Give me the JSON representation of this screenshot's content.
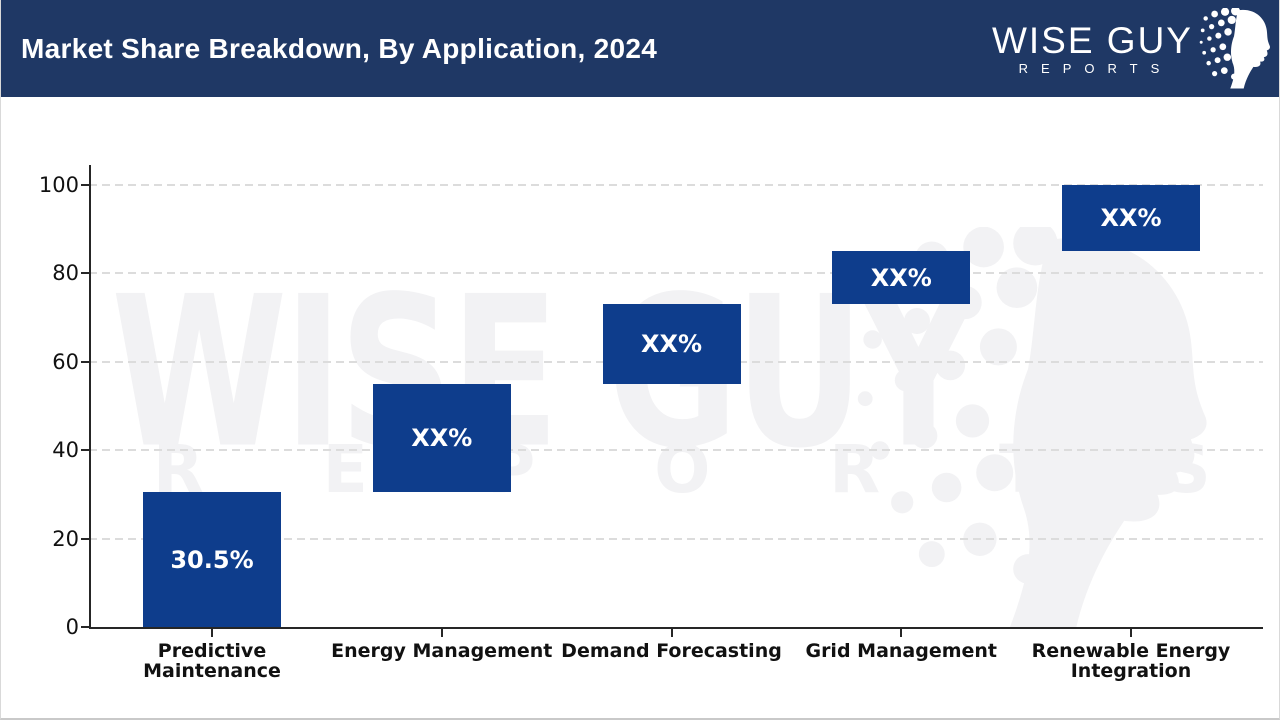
{
  "header": {
    "title": "Market Share Breakdown, By Application, 2024",
    "bg_color": "#1f3865",
    "brand": {
      "line1": "WISE GUY",
      "line2": "REPORTS"
    }
  },
  "watermark": {
    "line1": "WISE GUY",
    "line2": "R E P O R T S"
  },
  "chart_data": {
    "type": "bar",
    "subtype": "floating-waterfall",
    "title": "Market Share Breakdown, By Application, 2024",
    "categories": [
      "Predictive Maintenance",
      "Energy Management",
      "Demand Forecasting",
      "Grid Management",
      "Renewable Energy Integration"
    ],
    "category_label_lines": [
      [
        "Predictive",
        "Maintenance"
      ],
      [
        "Energy Management"
      ],
      [
        "Demand Forecasting"
      ],
      [
        "Grid Management"
      ],
      [
        "Renewable Energy",
        "Integration"
      ]
    ],
    "series": [
      {
        "name": "Market Share (%)",
        "segments": [
          [
            0,
            30.5
          ],
          [
            30.5,
            55
          ],
          [
            55,
            73
          ],
          [
            73,
            85
          ],
          [
            85,
            100
          ]
        ],
        "increments": [
          30.5,
          24.5,
          18,
          12,
          15
        ]
      }
    ],
    "bar_labels": [
      "30.5%",
      "XX%",
      "XX%",
      "XX%",
      "XX%"
    ],
    "bar_color": "#0e3d8c",
    "bar_label_color": "#ffffff",
    "xlabel": "",
    "ylabel": "",
    "ylim": [
      0,
      104.5
    ],
    "yticks": [
      0,
      20,
      40,
      60,
      80,
      100
    ],
    "grid": "horizontal-dashed",
    "gridline_color": "#dcdcdc",
    "legend": "none"
  }
}
